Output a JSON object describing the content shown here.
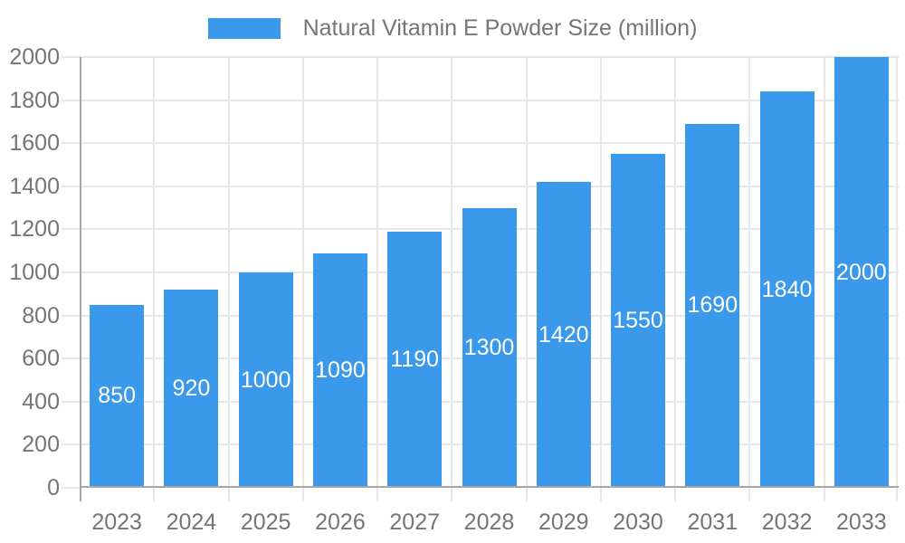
{
  "legend": {
    "label": "Natural Vitamin E Powder Size (million)"
  },
  "colors": {
    "bar": "#3B99EC",
    "grid": "#E7E7E7",
    "axis": "#A6A6A6",
    "text": "#757575",
    "value_text": "#FFFFFF",
    "background": "#FFFFFF"
  },
  "chart_data": {
    "type": "bar",
    "title": "Natural Vitamin E Powder Size (million)",
    "categories": [
      "2023",
      "2024",
      "2025",
      "2026",
      "2027",
      "2028",
      "2029",
      "2030",
      "2031",
      "2032",
      "2033"
    ],
    "values": [
      850,
      920,
      1000,
      1090,
      1190,
      1300,
      1420,
      1550,
      1690,
      1840,
      2000
    ],
    "series_name": "Natural Vitamin E Powder Size (million)",
    "xlabel": "",
    "ylabel": "",
    "ylim": [
      0,
      2000
    ],
    "ytick_step": 200,
    "ytick_labels": [
      "0",
      "200",
      "400",
      "600",
      "800",
      "1000",
      "1200",
      "1400",
      "1600",
      "1800",
      "2000"
    ],
    "grid": true,
    "legend_position": "top",
    "value_labels": "inside-center-white"
  }
}
